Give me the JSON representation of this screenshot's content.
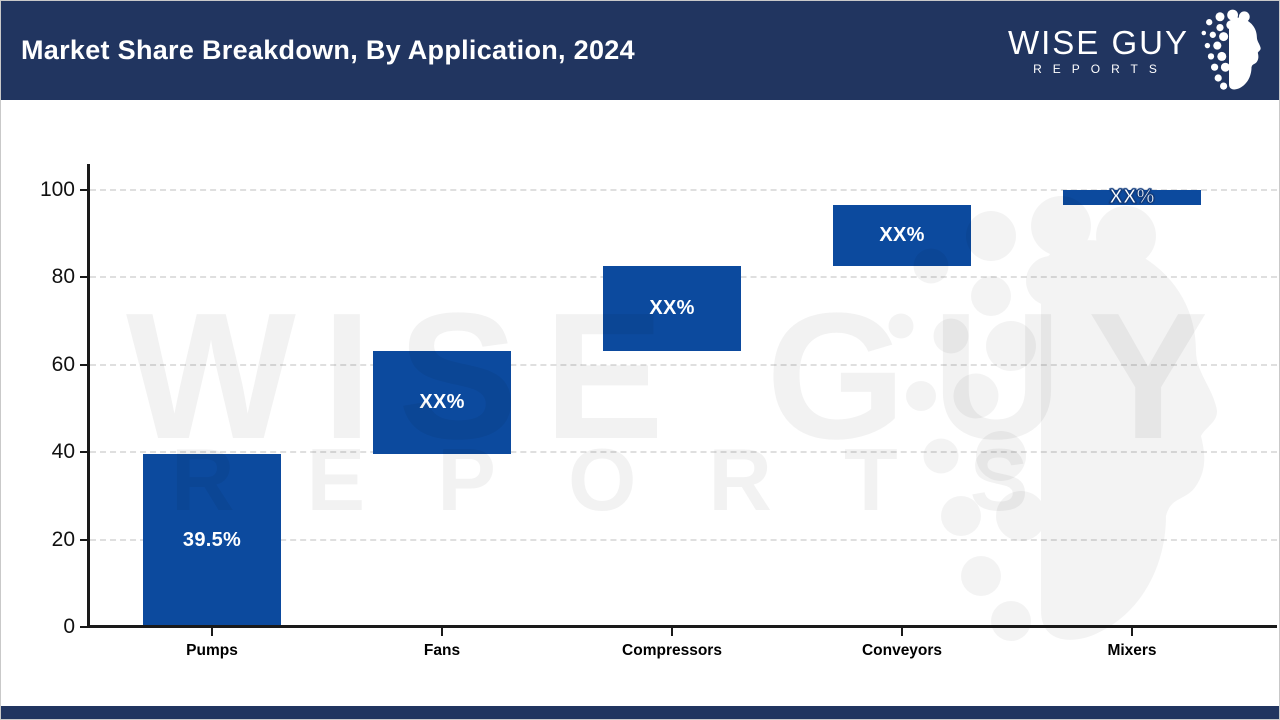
{
  "header": {
    "title": "Market Share Breakdown, By Application, 2024",
    "logo": {
      "line1": "WISE GUY",
      "line2": "REPORTS"
    }
  },
  "watermark": {
    "line1": "WISE GUY",
    "line2": "REPORTS"
  },
  "chart_data": {
    "type": "bar",
    "subtype": "waterfall",
    "title": "Market Share Breakdown, By Application, 2024",
    "categories": [
      "Pumps",
      "Fans",
      "Compressors",
      "Conveyors",
      "Mixers"
    ],
    "segments": [
      {
        "category": "Pumps",
        "start": 0,
        "end": 39.5,
        "label": "39.5%"
      },
      {
        "category": "Fans",
        "start": 39.5,
        "end": 63,
        "label": "XX%"
      },
      {
        "category": "Compressors",
        "start": 63,
        "end": 82.5,
        "label": "XX%"
      },
      {
        "category": "Conveyors",
        "start": 82.5,
        "end": 96.5,
        "label": "XX%"
      },
      {
        "category": "Mixers",
        "start": 96.5,
        "end": 100,
        "label": "XX%"
      }
    ],
    "xlabel": "",
    "ylabel": "",
    "ylim": [
      0,
      105
    ],
    "yticks": [
      0,
      20,
      40,
      60,
      80,
      100
    ],
    "grid": "horizontal-dashed",
    "legend": "none",
    "bar_color": "#0c4a9e",
    "value_label_color": "#ffffff"
  },
  "colors": {
    "header_bg": "#213560",
    "footer_bg": "#213560",
    "bar": "#0c4a9e",
    "axis": "#1a1a1a",
    "gridline": "#dfdfdf"
  }
}
